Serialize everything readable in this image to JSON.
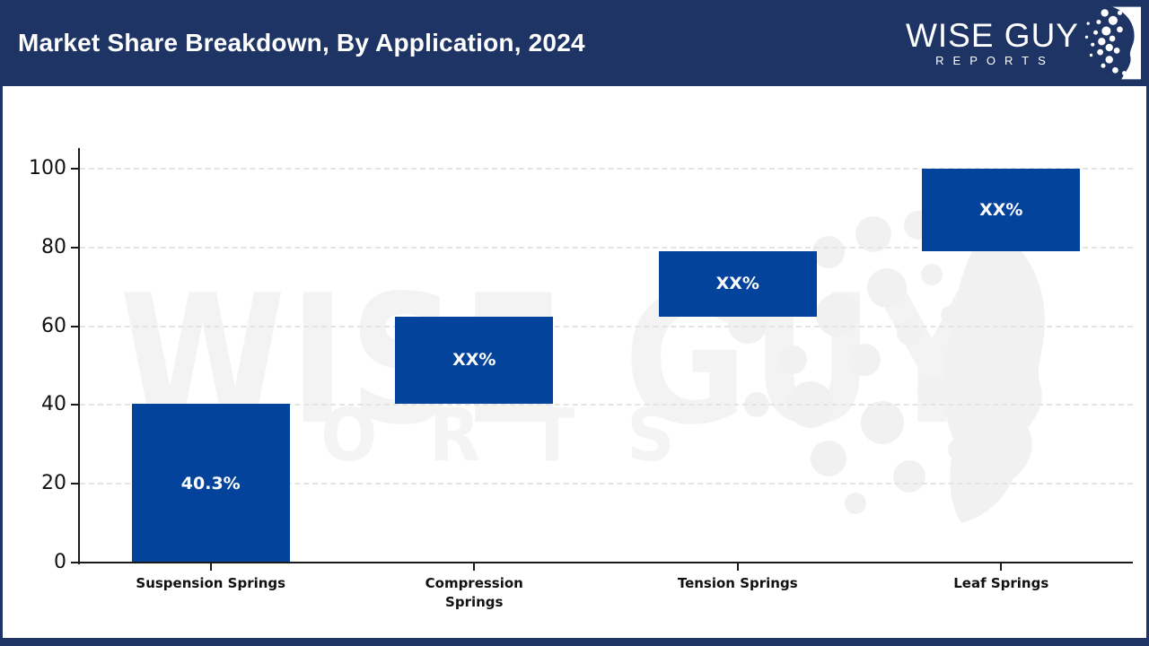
{
  "header": {
    "title": "Market Share Breakdown, By Application, 2024",
    "logo": {
      "line1": "WISE GUY",
      "line2": "REPORTS"
    }
  },
  "watermark": {
    "line1": "WISE GUY",
    "line2": "PORTS"
  },
  "colors": {
    "header_bg": "#1E3464",
    "bar": "#04439B",
    "bar_label": "#FFFFFF",
    "gridline": "#E4E4E4",
    "axis": "#1A1A1A",
    "watermark": "#F3F3F3",
    "panel_bg": "#FFFFFF"
  },
  "chart_data": {
    "type": "bar",
    "subtype": "waterfall",
    "title": "Market Share Breakdown, By Application, 2024",
    "xlabel": "",
    "ylabel": "",
    "categories": [
      "Suspension Springs",
      "Compression Springs",
      "Tension Springs",
      "Leaf Springs"
    ],
    "category_display": [
      "Suspension Springs",
      "Compression\nSprings",
      "Tension Springs",
      "Leaf Springs"
    ],
    "segments": [
      {
        "category": "Suspension Springs",
        "start": 0,
        "end": 40.3,
        "label": "40.3%"
      },
      {
        "category": "Compression Springs",
        "start": 40.4,
        "end": 62.4,
        "label": "XX%"
      },
      {
        "category": "Tension Springs",
        "start": 62.4,
        "end": 79.1,
        "label": "XX%"
      },
      {
        "category": "Leaf Springs",
        "start": 79.1,
        "end": 100,
        "label": "XX%"
      }
    ],
    "yticks": [
      0,
      20,
      40,
      60,
      80,
      100
    ],
    "ylim": [
      0,
      105
    ],
    "grid": "dashed-horizontal",
    "legend": "none"
  }
}
